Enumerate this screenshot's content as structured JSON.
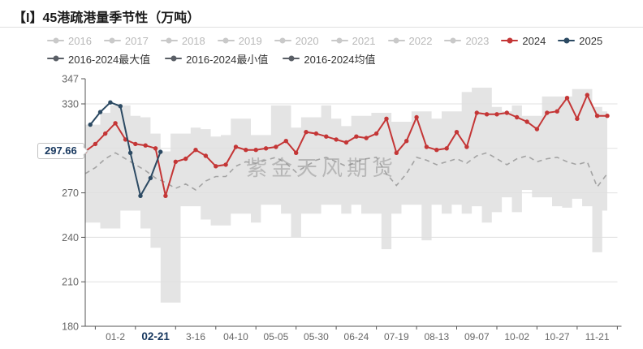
{
  "title": "【I】45港疏港量季节性（万吨）",
  "watermark": "紫金天风期货",
  "colors": {
    "year_inactive": "#c9c9c9",
    "year_2024": "#c43636",
    "year_2025": "#2c4a63",
    "stat": "#5a5f66",
    "band": "#e4e4e4",
    "mean": "#a3a3a3",
    "grid": "#e0e0e0",
    "axis": "#555555",
    "label": "#666666",
    "highlight": "#17375e"
  },
  "legend": {
    "years": [
      {
        "label": "2016",
        "active": false
      },
      {
        "label": "2017",
        "active": false
      },
      {
        "label": "2018",
        "active": false
      },
      {
        "label": "2019",
        "active": false
      },
      {
        "label": "2020",
        "active": false
      },
      {
        "label": "2021",
        "active": false
      },
      {
        "label": "2022",
        "active": false
      },
      {
        "label": "2023",
        "active": false
      },
      {
        "label": "2024",
        "active": true
      },
      {
        "label": "2025",
        "active": true
      }
    ],
    "stats": [
      {
        "label": "2016-2024最大值"
      },
      {
        "label": "2016-2024最小值"
      },
      {
        "label": "2016-2024均值"
      }
    ]
  },
  "chart_data": {
    "type": "line",
    "title": "【I】45港疏港量季节性（万吨）",
    "ylabel": "万吨",
    "ylim": [
      180,
      347
    ],
    "grid": true,
    "legend_position": "top",
    "gridlines": [
      330,
      300,
      270,
      240,
      210
    ],
    "y_ticks": [
      {
        "v": 347,
        "label": "347"
      },
      {
        "v": 330,
        "label": "330"
      },
      {
        "v": 300,
        "label": ""
      },
      {
        "v": 270,
        "label": "270"
      },
      {
        "v": 240,
        "label": "240"
      },
      {
        "v": 210,
        "label": "210"
      },
      {
        "v": 180,
        "label": "180"
      }
    ],
    "x_ticks": [
      {
        "index": 3,
        "label": "01-2"
      },
      {
        "index": 7,
        "label": "02-21",
        "highlight": true
      },
      {
        "index": 11,
        "label": "3-16"
      },
      {
        "index": 15,
        "label": "04-10"
      },
      {
        "index": 19,
        "label": "05-05"
      },
      {
        "index": 23,
        "label": "05-30"
      },
      {
        "index": 27,
        "label": "06-24"
      },
      {
        "index": 31,
        "label": "07-19"
      },
      {
        "index": 35,
        "label": "08-13"
      },
      {
        "index": 39,
        "label": "09-07"
      },
      {
        "index": 43,
        "label": "10-02"
      },
      {
        "index": 47,
        "label": "10-27"
      },
      {
        "index": 51,
        "label": "11-21"
      }
    ],
    "marker": {
      "value": 297.66,
      "label": "297.66",
      "series": "2025"
    },
    "series": [
      {
        "name": "2016-2024最大值",
        "role": "band_upper",
        "values": [
          316,
          316,
          324,
          329,
          329,
          322,
          321,
          310,
          298,
          310,
          310,
          314,
          313,
          308,
          309,
          320,
          320,
          309,
          309,
          329,
          329,
          314,
          321,
          321,
          329,
          320,
          315,
          322,
          322,
          324,
          324,
          318,
          318,
          325,
          325,
          320,
          325,
          325,
          338,
          341,
          341,
          328,
          325,
          329,
          322,
          322,
          335,
          335,
          335,
          340,
          340,
          328,
          325
        ]
      },
      {
        "name": "2016-2024最小值",
        "role": "band_lower",
        "values": [
          250,
          250,
          246,
          246,
          258,
          258,
          246,
          233,
          196,
          196,
          261,
          261,
          252,
          248,
          248,
          256,
          256,
          250,
          262,
          262,
          256,
          240,
          256,
          256,
          262,
          262,
          256,
          262,
          256,
          256,
          232,
          256,
          262,
          262,
          238,
          262,
          256,
          262,
          256,
          261,
          250,
          257,
          267,
          257,
          272,
          267,
          267,
          261,
          260,
          266,
          261,
          230,
          258
        ]
      },
      {
        "name": "2016-2024均值",
        "role": "mean",
        "values": [
          283,
          287,
          293,
          297,
          293,
          289,
          285,
          280,
          277,
          273,
          276,
          272,
          278,
          281,
          281,
          288,
          291,
          290,
          292,
          294,
          290,
          284,
          288,
          292,
          294,
          291,
          288,
          291,
          293,
          294,
          283,
          275,
          283,
          294,
          292,
          289,
          291,
          293,
          290,
          295,
          297,
          293,
          289,
          293,
          295,
          291,
          293,
          294,
          291,
          289,
          291,
          274,
          283
        ]
      },
      {
        "name": "2024",
        "role": "line",
        "color_key": "year_2024",
        "values": [
          298,
          303,
          310,
          317,
          306,
          303,
          302,
          300,
          268,
          291,
          293,
          299,
          295,
          288,
          289,
          301,
          299,
          299,
          300,
          301,
          305,
          297,
          311,
          310,
          308,
          306,
          304,
          308,
          307,
          310,
          320,
          297,
          305,
          321,
          301,
          299,
          300,
          311,
          301,
          324,
          323,
          323,
          324,
          321,
          318,
          313,
          324,
          325,
          334,
          320,
          336,
          322,
          322
        ]
      },
      {
        "name": "2025",
        "role": "line",
        "color_key": "year_2025",
        "x_offset": 0.5,
        "values": [
          316,
          324.5,
          331,
          328.5,
          297,
          268,
          280,
          297.66
        ]
      }
    ]
  }
}
